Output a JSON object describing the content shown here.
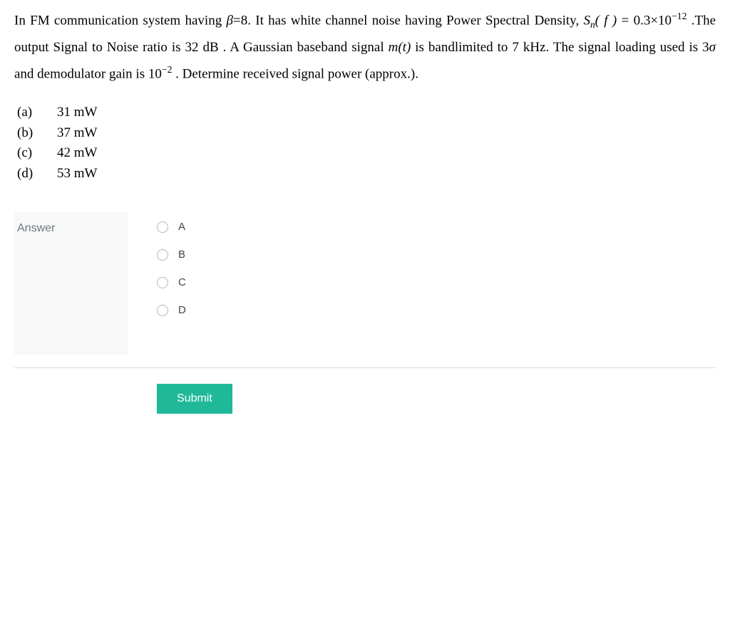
{
  "question": {
    "line1_pre": "In FM communication system having ",
    "beta": "β",
    "beta_val": "=8. It has white channel noise having Power",
    "line2_pre": "Spectral Density, ",
    "sn_expr_pre": "S",
    "sn_sub": "n",
    "sn_expr_f": "( f )",
    "sn_expr_eq": " = 0.3×10",
    "sn_exp": "−12",
    "line2_post": " .The output Signal to Noise ratio is 32 dB . A",
    "line3_pre": "Gaussian baseband signal ",
    "mt_m": "m",
    "mt_t": "(t)",
    "line3_post": " is bandlimited to 7 kHz. The signal loading used is 3",
    "sigma": "σ",
    "line4_pre": "and demodulator gain is 10",
    "gain_exp": "−2",
    "line4_post": " . Determine received signal power (approx.)."
  },
  "options": [
    {
      "label": "(a)",
      "value": "31 mW"
    },
    {
      "label": "(b)",
      "value": "37 mW"
    },
    {
      "label": "(c)",
      "value": "42 mW"
    },
    {
      "label": "(d)",
      "value": "53 mW"
    }
  ],
  "answer_label": "Answer",
  "choices": [
    "A",
    "B",
    "C",
    "D"
  ],
  "submit_label": "Submit",
  "colors": {
    "submit_bg": "#1fb99a",
    "answer_label": "#6b7a80",
    "radio_border": "#b6b6b6"
  }
}
